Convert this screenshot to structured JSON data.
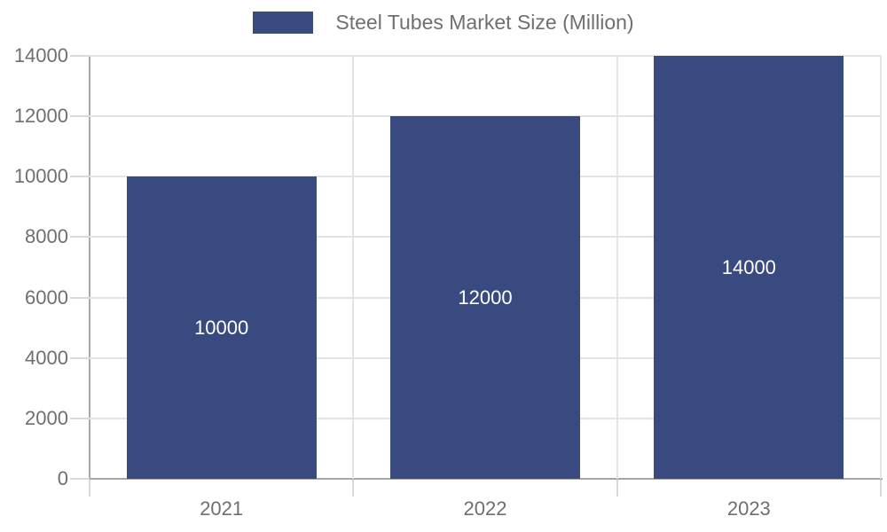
{
  "chart_data": {
    "type": "bar",
    "title": "",
    "series_name": "Steel Tubes Market Size (Million)",
    "categories": [
      "2021",
      "2022",
      "2023"
    ],
    "values": [
      10000,
      12000,
      14000
    ],
    "data_labels": [
      "10000",
      "12000",
      "14000"
    ],
    "xlabel": "",
    "ylabel": "",
    "ylim": [
      0,
      14000
    ],
    "y_ticks": [
      0,
      2000,
      4000,
      6000,
      8000,
      10000,
      12000,
      14000
    ],
    "grid": true,
    "legend_position": "top",
    "bar_color": "#394A80",
    "data_label_color": "#ffffff",
    "axis_text_color": "#6f6f6f",
    "gridline_color": "#e4e4e4"
  }
}
